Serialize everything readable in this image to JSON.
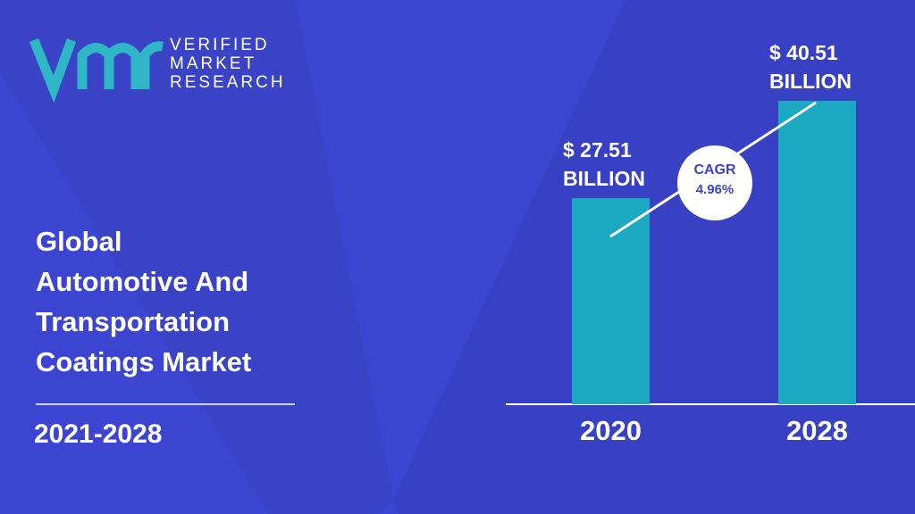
{
  "logo": {
    "lines": [
      "VERIFIED",
      "MARKET",
      "RESEARCH"
    ]
  },
  "title_lines": [
    "Global",
    "Automotive And",
    "Transportation",
    "Coatings Market"
  ],
  "period": "2021-2028",
  "chart_data": {
    "type": "bar",
    "categories": [
      "2020",
      "2028"
    ],
    "values": [
      27.51,
      40.51
    ],
    "value_labels": [
      "$ 27.51 BILLION",
      "$ 40.51 BILLION"
    ],
    "color": "#1ba9c1",
    "annotations": {
      "cagr_label": "CAGR",
      "cagr_value": "4.96%"
    }
  }
}
